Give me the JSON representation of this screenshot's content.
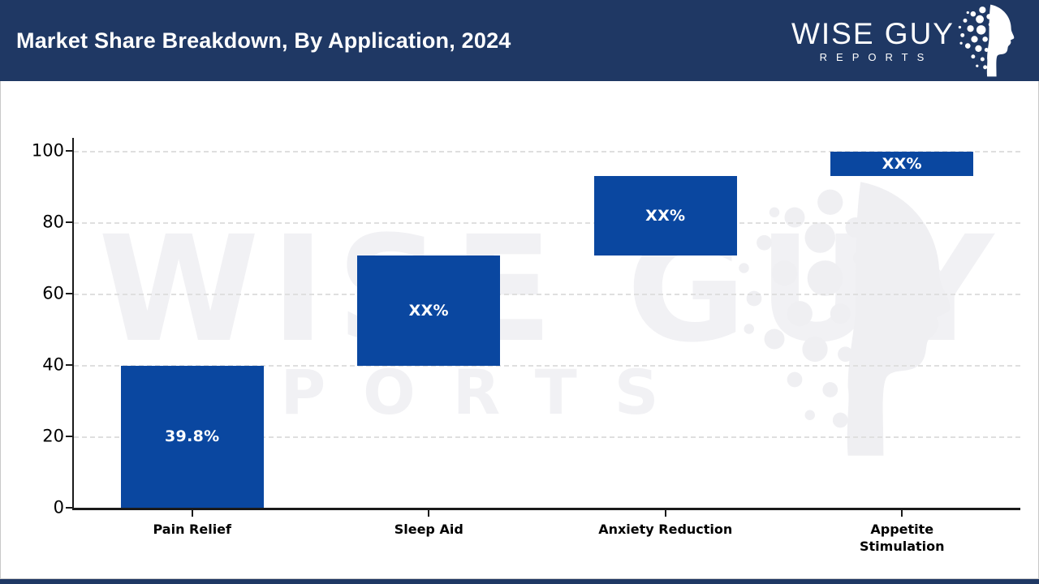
{
  "header": {
    "title": "Market Share Breakdown, By Application, 2024",
    "bg_color": "#1f3864",
    "logo": {
      "wordmark": "WISE GUY",
      "subtitle": "REPORTS",
      "head_icon": "dotted-head-profile"
    }
  },
  "watermark": {
    "wordmark": "WISE GUY",
    "subtitle": "REPORTS"
  },
  "chart_data": {
    "type": "bar",
    "subtype": "waterfall",
    "title": "Market Share Breakdown, By Application, 2024",
    "categories": [
      "Pain Relief",
      "Sleep Aid",
      "Anxiety Reduction",
      "Appetite Stimulation"
    ],
    "tick_labels": [
      "Pain Relief",
      "Sleep Aid",
      "Anxiety Reduction",
      "Appetite\nStimulation"
    ],
    "segments": [
      {
        "category": "Pain Relief",
        "start": 0,
        "end": 39.8,
        "label": "39.8%"
      },
      {
        "category": "Sleep Aid",
        "start": 39.8,
        "end": 70.7,
        "label": "XX%"
      },
      {
        "category": "Anxiety Reduction",
        "start": 70.7,
        "end": 93.0,
        "label": "XX%"
      },
      {
        "category": "Appetite Stimulation",
        "start": 93.0,
        "end": 99.8,
        "label": "XX%"
      }
    ],
    "yticks": [
      0,
      20,
      40,
      60,
      80,
      100
    ],
    "ylim": [
      0,
      103.6
    ],
    "xlabel": "",
    "ylabel": "",
    "grid": {
      "axis": "y",
      "style": "dashed",
      "color": "#dfdfdf"
    },
    "legend": null,
    "colors": {
      "bar": "#0a47a0",
      "bar_label": "#ffffff",
      "axis": "#1a1a1a",
      "tick_label": "#000000"
    }
  }
}
